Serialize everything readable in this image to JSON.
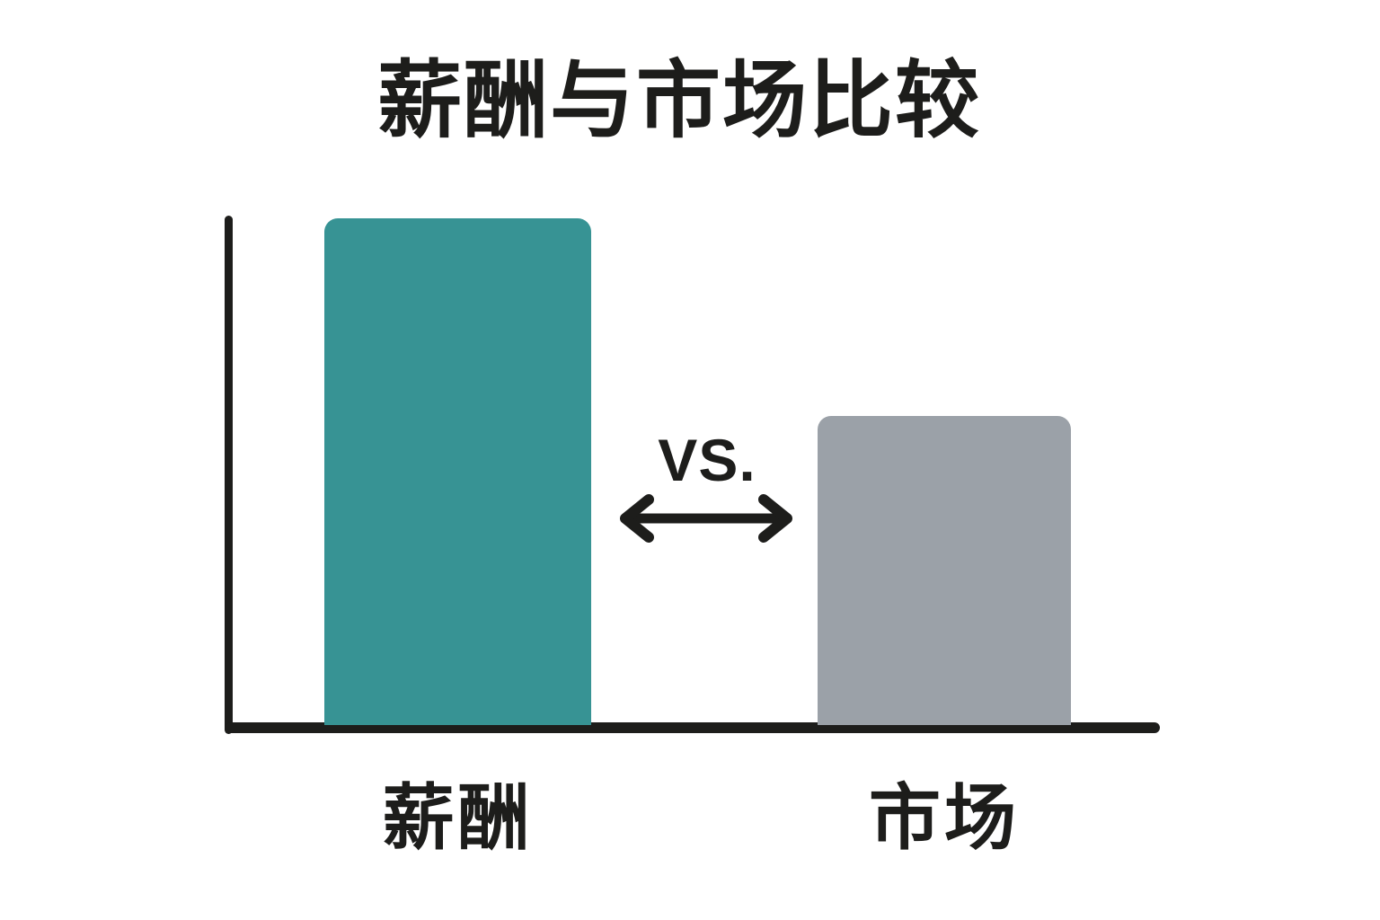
{
  "title": "薪酬与市场比较",
  "comparison": {
    "vs_label": "VS."
  },
  "chart_data": {
    "type": "bar",
    "title": "薪酬与市场比较",
    "categories": [
      "薪酬",
      "市场"
    ],
    "values": [
      100,
      61
    ],
    "values_note": "relative heights estimated from pixels; no numeric labels shown",
    "bar_colors": [
      "#379394",
      "#9BA1A8"
    ],
    "xlabel": "",
    "ylabel": "",
    "ylim": [
      0,
      100
    ],
    "gridlines": false,
    "legend": false,
    "annotations": [
      "VS.",
      "double-headed arrow between bars"
    ]
  },
  "colors": {
    "background": "#FFFFFF",
    "ink": "#1D1D1B",
    "salary_bar": "#379394",
    "market_bar": "#9BA1A8"
  },
  "icons": {
    "double_arrow": "horizontal double-headed arrow"
  }
}
